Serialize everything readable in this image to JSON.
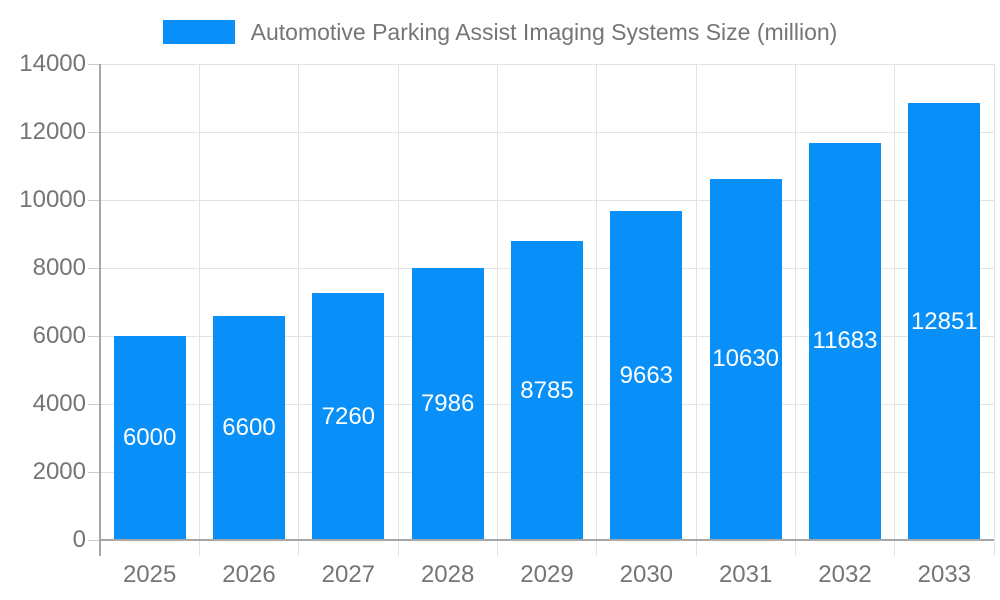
{
  "legend": {
    "label": "Automotive Parking Assist Imaging Systems Size (million)"
  },
  "chart_data": {
    "type": "bar",
    "title": "Automotive Parking Assist Imaging Systems Size (million)",
    "categories": [
      "2025",
      "2026",
      "2027",
      "2028",
      "2029",
      "2030",
      "2031",
      "2032",
      "2033"
    ],
    "values": [
      6000,
      6600,
      7260,
      7986,
      8785,
      9663,
      10630,
      11683,
      12851
    ],
    "value_labels_shown": [
      "6000",
      "6600",
      "7260",
      "7986",
      "8785",
      "9663",
      "10630",
      "11683",
      "12851"
    ],
    "xlabel": "",
    "ylabel": "",
    "ylim": [
      0,
      14000
    ],
    "yticks": [
      0,
      2000,
      4000,
      6000,
      8000,
      10000,
      12000,
      14000
    ],
    "grid": true,
    "legend_position": "top-center",
    "value_label_position": "inside-center",
    "colors": {
      "bar": "#0890f8",
      "value_label": "#ffffff",
      "axis_text": "#757575",
      "axis_line": "#a6a6a6",
      "grid_line": "#e3e3e3",
      "tick_line": "#cccccc",
      "background": "#ffffff"
    }
  }
}
